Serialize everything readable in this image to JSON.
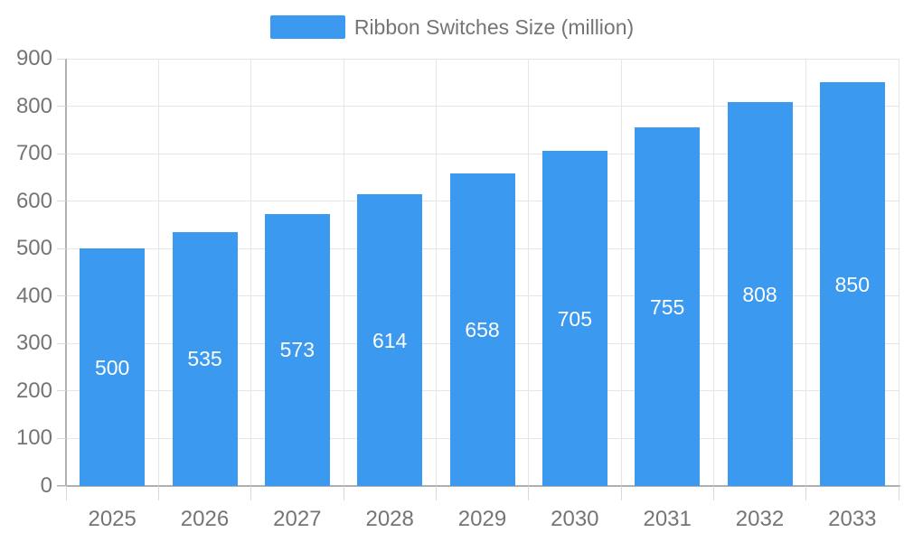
{
  "legend": {
    "label": "Ribbon Switches Size (million)"
  },
  "colors": {
    "bar": "#3b99f0",
    "axis_line": "#b0b0b0",
    "gridline": "#e6e6e6",
    "tick": "#d9d9d9",
    "axis_text": "#757575",
    "value_text": "#ffffff",
    "background": "#ffffff"
  },
  "chart_data": {
    "type": "bar",
    "title": "",
    "legend_entries": [
      "Ribbon Switches Size (million)"
    ],
    "legend_position": "top-center",
    "categories": [
      "2025",
      "2026",
      "2027",
      "2028",
      "2029",
      "2030",
      "2031",
      "2032",
      "2033"
    ],
    "values": [
      500,
      535,
      573,
      614,
      658,
      705,
      755,
      808,
      850
    ],
    "series": [
      {
        "name": "Ribbon Switches Size (million)",
        "values": [
          500,
          535,
          573,
          614,
          658,
          705,
          755,
          808,
          850
        ]
      }
    ],
    "value_labels_shown": true,
    "xlabel": "",
    "ylabel": "",
    "ylim": [
      0,
      900
    ],
    "ytick_step": 100,
    "yticks": [
      0,
      100,
      200,
      300,
      400,
      500,
      600,
      700,
      800,
      900
    ],
    "grid": true
  }
}
